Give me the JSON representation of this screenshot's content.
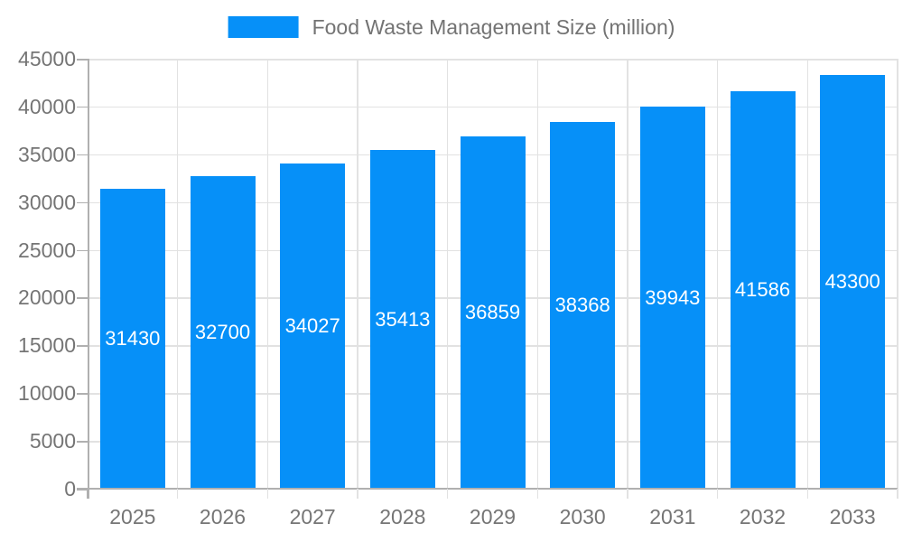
{
  "chart_data": {
    "type": "bar",
    "title": "Food Waste Management Size (million)",
    "categories": [
      "2025",
      "2026",
      "2027",
      "2028",
      "2029",
      "2030",
      "2031",
      "2032",
      "2033"
    ],
    "values": [
      31430,
      32700,
      34027,
      35413,
      36859,
      38368,
      39943,
      41586,
      43300
    ],
    "xlabel": "",
    "ylabel": "",
    "ylim": [
      0,
      45000
    ],
    "ytick_step": 5000,
    "grid": true,
    "legend_position": "top",
    "value_label_position": "inside-middle"
  },
  "legend": {
    "label": "Food Waste Management Size (million)"
  },
  "colors": {
    "bar": "#0690F8",
    "value_label": "#FFFFFF",
    "axis_line": "#B0B0B0",
    "gridline": "#E2E2E2",
    "tick_label": "#757575",
    "legend_text": "#737373",
    "background": "#FFFFFF"
  }
}
